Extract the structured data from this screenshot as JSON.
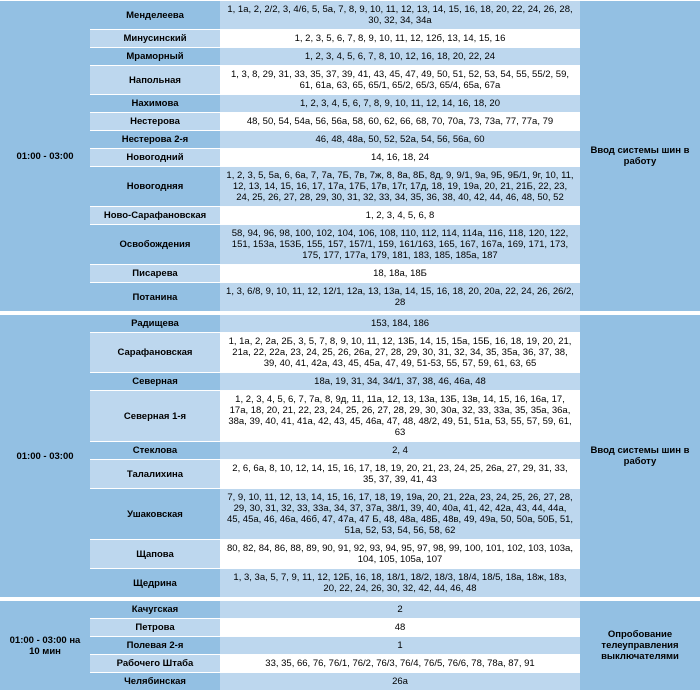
{
  "groups": [
    {
      "time": "01:00 - 03:00",
      "operation": "Ввод системы шин в работу",
      "rows": [
        {
          "street": "Менделеева",
          "values": "1, 1а, 2, 2/2, 3, 4/6, 5, 5а, 7, 8, 9, 10, 11, 12, 13, 14, 15, 16, 18, 20, 22, 24, 26, 28, 30, 32, 34, 34а"
        },
        {
          "street": "Минусинский",
          "values": "1, 2, 3, 5, 6, 7, 8, 9, 10, 11, 12, 12б, 13, 14, 15, 16"
        },
        {
          "street": "Мраморный",
          "values": "1, 2, 3, 4, 5, 6, 7, 8, 10, 12, 16, 18, 20, 22, 24"
        },
        {
          "street": "Напольная",
          "values": "1, 3, 8, 29, 31, 33, 35, 37, 39, 41, 43, 45, 47, 49, 50, 51, 52, 53, 54, 55, 55/2, 59, 61, 61а, 63, 65, 65/1, 65/2, 65/3, 65/4, 65а, 67а"
        },
        {
          "street": "Нахимова",
          "values": "1, 2, 3, 4, 5, 6, 7, 8, 9, 10, 11, 12, 14, 16, 18, 20"
        },
        {
          "street": "Нестерова",
          "values": "48, 50, 54, 54а, 56, 56а, 58, 60, 62, 66, 68, 70, 70а, 73, 73а, 77, 77а, 79"
        },
        {
          "street": "Нестерова 2-я",
          "values": "46, 48, 48а, 50, 52, 52а, 54, 56, 56а, 60"
        },
        {
          "street": "Новогодний",
          "values": "14, 16, 18, 24"
        },
        {
          "street": "Новогодняя",
          "values": "1, 2, 3, 5, 5а, 6, 6а, 7, 7а, 7Б, 7в, 7ж, 8, 8а, 8Б, 8д, 9, 9/1, 9а, 9Б, 9Б/1, 9г, 10, 11, 12, 13, 14, 15, 16, 17, 17а, 17Б, 17в, 17г, 17д, 18, 19, 19а, 20, 21, 21Б, 22, 23, 24, 25, 26, 27, 28, 29, 30, 31, 32, 33, 34, 35, 36, 38, 40, 42, 44, 46, 48, 50, 52"
        },
        {
          "street": "Ново-Сарафановская",
          "values": "1, 2, 3, 4, 5, 6, 8"
        },
        {
          "street": "Освобождения",
          "values": "58, 94, 96, 98, 100, 102, 104, 106, 108, 110, 112, 114, 114а, 116, 118, 120, 122, 151, 153а, 153Б, 155, 157, 157/1, 159, 161/163, 165, 167, 167а, 169, 171, 173, 175, 177, 177а, 179, 181, 183, 185, 185а, 187"
        },
        {
          "street": "Писарева",
          "values": "18, 18а, 18Б"
        },
        {
          "street": "Потанина",
          "values": "1, 3, 6/8, 9, 10, 11, 12, 12/1, 12а, 13, 13а, 14, 15, 16, 18, 20, 20а, 22, 24, 26, 26/2, 28"
        }
      ]
    },
    {
      "time": "01:00 - 03:00",
      "operation": "Ввод системы шин в работу",
      "rows": [
        {
          "street": "Радищева",
          "values": "153, 184, 186"
        },
        {
          "street": "Сарафановская",
          "values": "1, 1а, 2, 2а, 2Б, 3, 5, 7, 8, 9, 10, 11, 12, 13Б, 14, 15, 15а, 15Б, 16, 18, 19, 20, 21, 21а, 22, 22а, 23, 24, 25, 26, 26а, 27, 28, 29, 30, 31, 32, 34, 35, 35а, 36, 37, 38, 39, 40, 41, 42а, 43, 45, 45а, 47, 49, 51-53, 55, 57, 59, 61, 63, 65"
        },
        {
          "street": "Северная",
          "values": "18а, 19, 31, 34, 34/1, 37, 38, 46, 46а, 48"
        },
        {
          "street": "Северная 1-я",
          "values": "1, 2, 3, 4, 5, 6, 7, 7а, 8, 9д, 11, 11а, 12, 13, 13а, 13Б, 13в, 14, 15, 16, 16а, 17, 17а, 18, 20, 21, 22, 23, 24, 25, 26, 27, 28, 29, 30, 30а, 32, 33, 33а, 35, 35а, 36а, 38а, 39, 40, 41, 41а, 42, 43, 45, 46а, 47, 48, 48/2, 49, 51, 51а, 53, 55, 57, 59, 61, 63"
        },
        {
          "street": "Стеклова",
          "values": "2, 4"
        },
        {
          "street": "Талалихина",
          "values": "2, 6, 6а, 8, 10, 12, 14, 15, 16, 17, 18, 19, 20, 21, 23, 24, 25, 26а, 27, 29, 31, 33, 35, 37, 39, 41, 43"
        },
        {
          "street": "Ушаковская",
          "values": "7, 9, 10, 11, 12, 13, 14, 15, 16, 17, 18, 19, 19а, 20, 21, 22а, 23, 24, 25, 26, 27, 28, 29, 30, 31, 32, 33, 33а, 34, 37, 37а, 38/1, 39, 40, 40а, 41, 42, 42а, 43, 44, 44а, 45, 45а, 46, 46а, 46б, 47, 47а, 47 Б, 48, 48а, 48Б, 48в, 49, 49а, 50, 50а, 50Б, 51, 51а, 52, 53, 54, 56, 58, 62"
        },
        {
          "street": "Щапова",
          "values": "80, 82, 84, 86, 88, 89, 90, 91, 92, 93, 94, 95, 97, 98, 99, 100, 101, 102, 103, 103а, 104, 105, 105а, 107"
        },
        {
          "street": "Щедрина",
          "values": "1, 3, 3а, 5, 7, 9, 11, 12, 12Б, 16, 18, 18/1, 18/2, 18/3, 18/4, 18/5, 18а, 18ж, 18з, 20, 22, 24, 26, 30, 32, 42, 44, 46, 48"
        }
      ]
    },
    {
      "time": "01:00 - 03:00 на 10 мин",
      "operation": "Опробование телеуправления выключателями",
      "rows": [
        {
          "street": "Качугская",
          "values": "2"
        },
        {
          "street": "Петрова",
          "values": "48"
        },
        {
          "street": "Полевая 2-я",
          "values": "1"
        },
        {
          "street": "Рабочего Штаба",
          "values": "33, 35, 66, 76, 76/1, 76/2, 76/3, 76/4, 76/5, 76/6, 78, 78а, 87, 91"
        },
        {
          "street": "Челябинская",
          "values": "26а"
        }
      ]
    }
  ],
  "style": {
    "header_bg": "#93c0e3",
    "alt_bg": "#bdd7ee",
    "font_size": 9.5,
    "col_widths": {
      "time": 90,
      "street": 130,
      "oper": 120
    }
  }
}
